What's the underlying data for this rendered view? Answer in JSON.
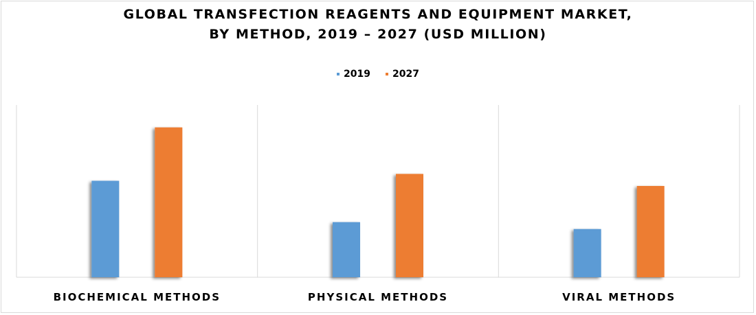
{
  "title_line1": "GLOBAL TRANSFECTION REAGENTS AND EQUIPMENT MARKET,",
  "title_line2": "BY METHOD, 2019 – 2027 (USD MILLION)",
  "colors": {
    "series_2019": "#5b9bd5",
    "series_2027": "#ed7d31",
    "grid": "#d9d9d9"
  },
  "chart_data": {
    "type": "bar",
    "categories": [
      "BIOCHEMICAL METHODS",
      "PHYSICAL METHODS",
      "VIRAL METHODS"
    ],
    "series": [
      {
        "name": "2019",
        "values": [
          56,
          32,
          28
        ]
      },
      {
        "name": "2027",
        "values": [
          87,
          60,
          53
        ]
      }
    ],
    "title": "GLOBAL TRANSFECTION REAGENTS AND EQUIPMENT MARKET, BY METHOD, 2019 – 2027 (USD MILLION)",
    "xlabel": "",
    "ylabel": "",
    "ylim": [
      0,
      100
    ],
    "grid": true,
    "legend": "top-center"
  }
}
